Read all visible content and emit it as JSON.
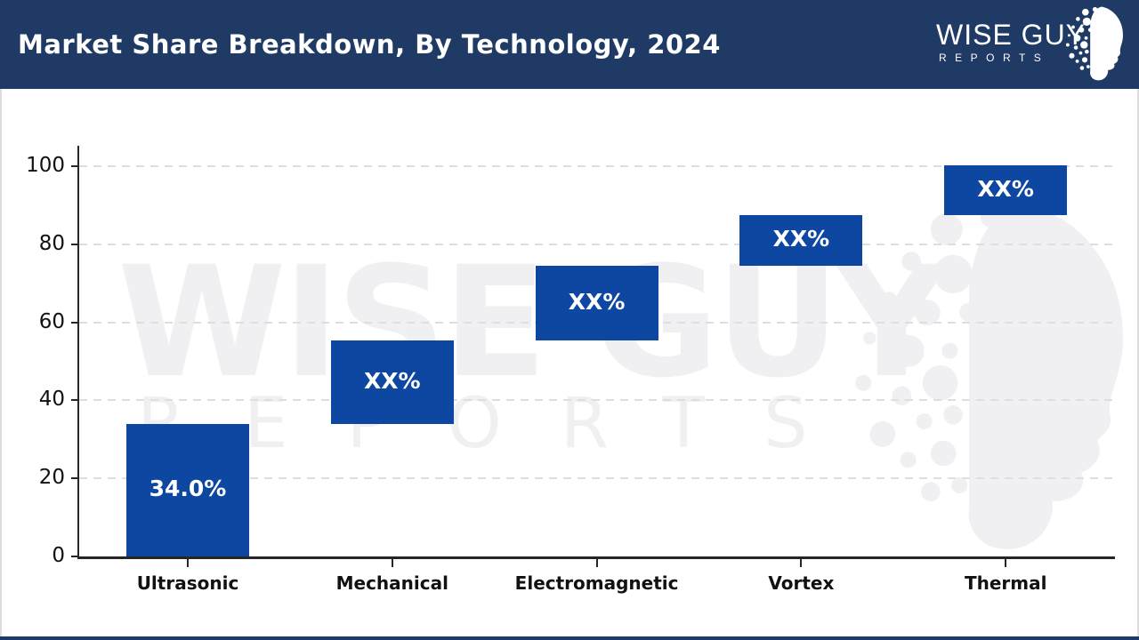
{
  "header": {
    "title": "Market Share Breakdown, By Technology, 2024",
    "logo": {
      "brand": "WISE GUY",
      "sub": "REPORTS"
    }
  },
  "watermark": {
    "line1": "WISE GUY",
    "line2": "REPORTS"
  },
  "chart_data": {
    "type": "bar",
    "subtype": "waterfall",
    "title": "Market Share Breakdown, By Technology, 2024",
    "categories": [
      "Ultrasonic",
      "Mechanical",
      "Electromagnetic",
      "Vortex",
      "Thermal"
    ],
    "segments": [
      {
        "category": "Ultrasonic",
        "start": 0,
        "end": 34.0,
        "label": "34.0%"
      },
      {
        "category": "Mechanical",
        "start": 34.0,
        "end": 55.4,
        "label": "XX%"
      },
      {
        "category": "Electromagnetic",
        "start": 55.4,
        "end": 74.6,
        "label": "XX%"
      },
      {
        "category": "Vortex",
        "start": 74.6,
        "end": 87.4,
        "label": "XX%"
      },
      {
        "category": "Thermal",
        "start": 87.4,
        "end": 100.3,
        "label": "XX%"
      }
    ],
    "xlabel": "",
    "ylabel": "",
    "yticks": [
      0,
      20,
      40,
      60,
      80,
      100
    ],
    "ylim": [
      0,
      105
    ],
    "grid": "horizontal-dashed",
    "legend": "none",
    "bar_color": "#0d47a1",
    "bar_label_color": "#ffffff",
    "axis_color": "#262626",
    "header_color": "#1f3a64"
  }
}
